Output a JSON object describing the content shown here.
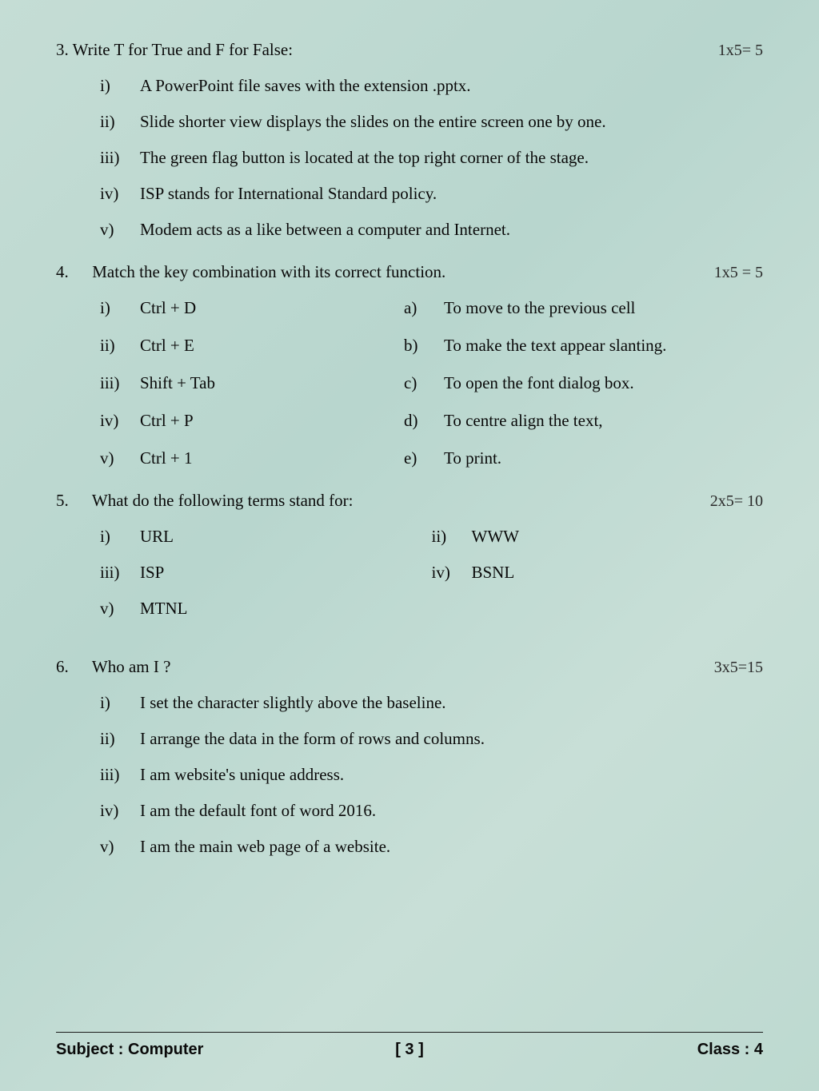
{
  "colors": {
    "background": "#c2dbd3",
    "text": "#0a0a0a",
    "footer_text": "#0a0a0a",
    "border": "#1a1a1a"
  },
  "typography": {
    "body_font": "Times New Roman",
    "body_size_pt": 16,
    "footer_font": "Arial",
    "footer_weight": "bold"
  },
  "q3": {
    "number": "3.",
    "title": "Write T for True and F for False:",
    "marks": "1x5= 5",
    "items": [
      {
        "label": "i)",
        "text": "A PowerPoint file saves with the extension .pptx."
      },
      {
        "label": "ii)",
        "text": "Slide shorter view displays the slides on the entire screen one by one."
      },
      {
        "label": "iii)",
        "text": "The green flag button is located at the top right corner of the stage."
      },
      {
        "label": "iv)",
        "text": "ISP stands for International Standard policy."
      },
      {
        "label": "v)",
        "text": "Modem acts as a like between a computer and Internet."
      }
    ]
  },
  "q4": {
    "number": "4.",
    "title": "Match the key combination with its correct function.",
    "marks": "1x5 = 5",
    "left": [
      {
        "label": "i)",
        "text": "Ctrl + D"
      },
      {
        "label": "ii)",
        "text": "Ctrl + E"
      },
      {
        "label": "iii)",
        "text": "Shift + Tab"
      },
      {
        "label": "iv)",
        "text": "Ctrl + P"
      },
      {
        "label": "v)",
        "text": "Ctrl + 1"
      }
    ],
    "right": [
      {
        "label": "a)",
        "text": "To move to the previous cell"
      },
      {
        "label": "b)",
        "text": "To make the text appear slanting."
      },
      {
        "label": "c)",
        "text": "To open the font dialog box."
      },
      {
        "label": "d)",
        "text": "To centre align the text,"
      },
      {
        "label": "e)",
        "text": "To print."
      }
    ]
  },
  "q5": {
    "number": "5.",
    "title": "What do the following terms stand for:",
    "marks": "2x5= 10",
    "items": [
      {
        "label": "i)",
        "text": "URL"
      },
      {
        "label": "ii)",
        "text": "WWW"
      },
      {
        "label": "iii)",
        "text": "ISP"
      },
      {
        "label": "iv)",
        "text": "BSNL"
      },
      {
        "label": "v)",
        "text": "MTNL"
      }
    ]
  },
  "q6": {
    "number": "6.",
    "title": "Who am I ?",
    "marks": "3x5=15",
    "items": [
      {
        "label": "i)",
        "text": "I set the character slightly above the baseline."
      },
      {
        "label": "ii)",
        "text": "I arrange the data in the form of rows and columns."
      },
      {
        "label": "iii)",
        "text": "I am website's unique address."
      },
      {
        "label": "iv)",
        "text": "I am the default font of word 2016."
      },
      {
        "label": "v)",
        "text": "I am the main web page of a website."
      }
    ]
  },
  "footer": {
    "subject": "Subject : Computer",
    "page": "[ 3 ]",
    "class": "Class : 4"
  }
}
